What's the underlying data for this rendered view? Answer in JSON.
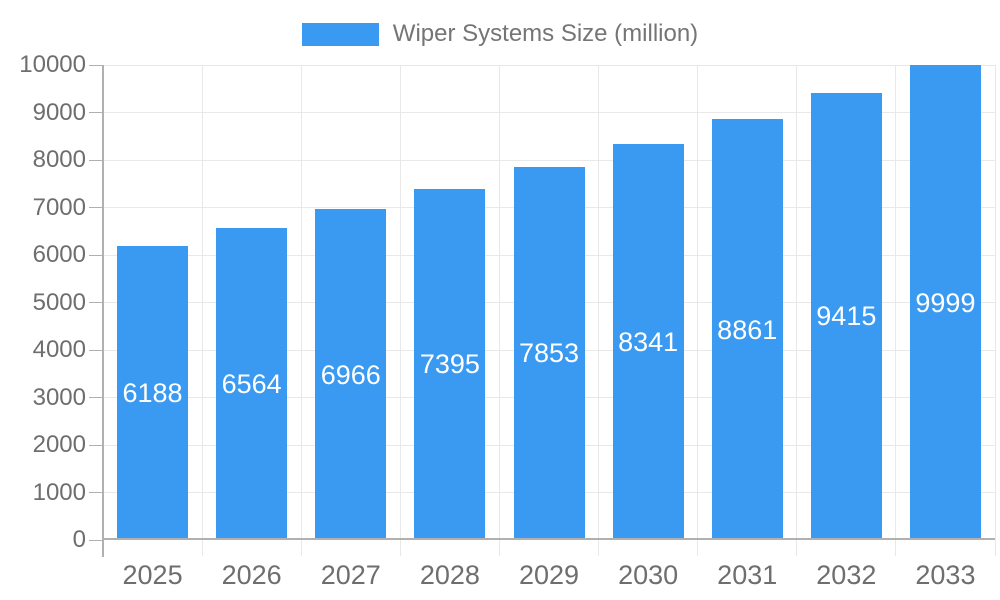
{
  "chart_data": {
    "type": "bar",
    "title": "Wiper Systems Size (million)",
    "legend_position": "top",
    "categories": [
      "2025",
      "2026",
      "2027",
      "2028",
      "2029",
      "2030",
      "2031",
      "2032",
      "2033"
    ],
    "values": [
      6188,
      6564,
      6966,
      7395,
      7853,
      8341,
      8861,
      9415,
      9999
    ],
    "xlabel": "",
    "ylabel": "",
    "ylim": [
      0,
      10000
    ],
    "y_tick_step": 1000,
    "y_ticks": [
      0,
      1000,
      2000,
      3000,
      4000,
      5000,
      6000,
      7000,
      8000,
      9000,
      10000
    ],
    "grid": true,
    "value_labels_inside_bars": true,
    "colors": {
      "bar": "#3a99f0",
      "value_label": "#ffffff",
      "grid": "#e8e8e8",
      "axis": "#b0b0b0",
      "axis_tick_text": "#6e6e6e",
      "legend_text": "#757575",
      "background": "#ffffff"
    }
  }
}
